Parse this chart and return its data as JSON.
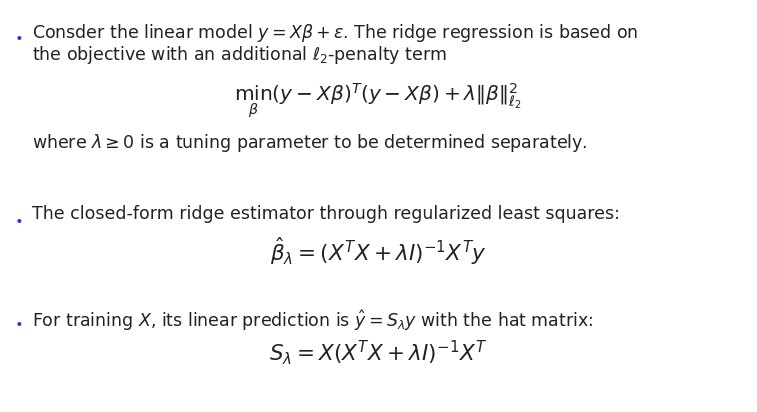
{
  "background_color": "#ffffff",
  "bullet_color": "#3333cc",
  "text_color": "#222222",
  "figsize": [
    7.57,
    4.12
  ],
  "dpi": 100,
  "bullet1_line1": "Consder the linear model $y = X\\beta + \\varepsilon$. The ridge regression is based on",
  "bullet1_line2": "the objective with an additional $\\ell_2$-penalty term",
  "formula1": "$\\underset{\\beta}{\\mathrm{min}}(y - X\\beta)^T(y - X\\beta) + \\lambda\\|\\beta\\|^2_{\\ell_2}$",
  "where_text": "where $\\lambda \\geq 0$ is a tuning parameter to be determined separately.",
  "bullet2_text": "The closed-form ridge estimator through regularized least squares:",
  "formula2": "$\\hat{\\beta}_\\lambda = (X^TX + \\lambda I)^{-1}X^Ty$",
  "bullet3_text": "For training $X$, its linear prediction is $\\hat{y} = S_\\lambda y$ with the hat matrix:",
  "formula3": "$S_\\lambda = X(X^TX + \\lambda I)^{-1}X^T$",
  "font_size_text": 12.5,
  "font_size_formula": 14.5,
  "bullet_size": 10
}
